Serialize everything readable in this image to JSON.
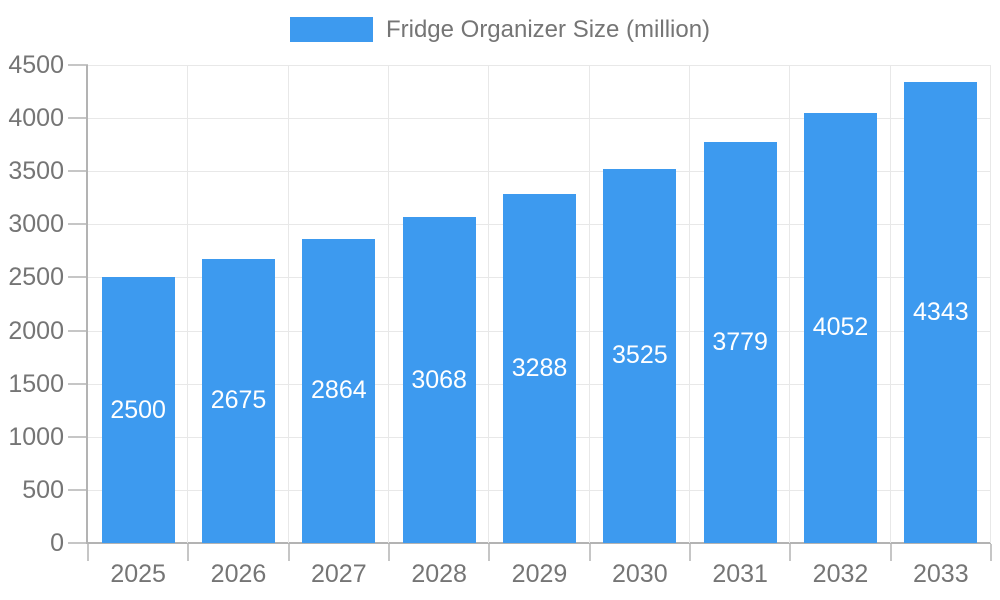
{
  "legend": {
    "label": "Fridge Organizer Size (million)"
  },
  "chart_data": {
    "type": "bar",
    "title": "Fridge Organizer Size (million)",
    "series_name": "Fridge Organizer Size (million)",
    "categories": [
      "2025",
      "2026",
      "2027",
      "2028",
      "2029",
      "2030",
      "2031",
      "2032",
      "2033"
    ],
    "values": [
      2500,
      2675,
      2864,
      3068,
      3288,
      3525,
      3779,
      4052,
      4343
    ],
    "xlabel": "",
    "ylabel": "",
    "ylim": [
      0,
      4500
    ],
    "ytick_step": 500,
    "yticks": [
      0,
      500,
      1000,
      1500,
      2000,
      2500,
      3000,
      3500,
      4000,
      4500
    ],
    "grid": true,
    "legend_position": "top",
    "value_labels": "inside-center"
  },
  "colors": {
    "bar": "#3D9AEF",
    "bar_label": "#FFFFFF",
    "text": "#757575",
    "axis": "#B3B3B3",
    "tick": "#C6C6C6",
    "grid": "#E8E8E8",
    "background": "#FFFFFF"
  }
}
